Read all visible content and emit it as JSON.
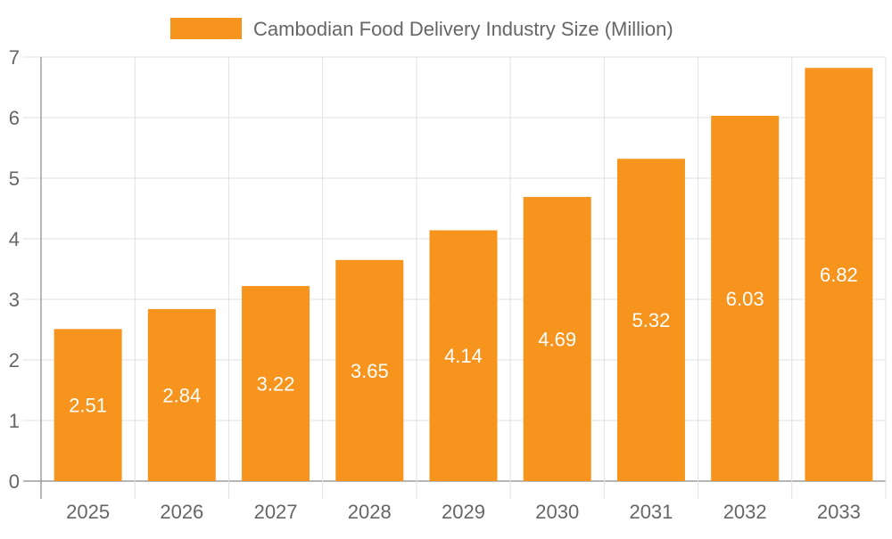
{
  "chart_data": {
    "type": "bar",
    "title": "",
    "xlabel": "",
    "ylabel": "",
    "categories": [
      "2025",
      "2026",
      "2027",
      "2028",
      "2029",
      "2030",
      "2031",
      "2032",
      "2033"
    ],
    "series": [
      {
        "name": "Cambodian Food Delivery Industry Size (Million)",
        "values": [
          2.51,
          2.84,
          3.22,
          3.65,
          4.14,
          4.69,
          5.32,
          6.03,
          6.82
        ]
      }
    ],
    "ylim": [
      0,
      7
    ],
    "yticks": [
      "0",
      "1",
      "2",
      "3",
      "4",
      "5",
      "6",
      "7"
    ],
    "grid": true,
    "legend_placement": "top",
    "data_labels": true,
    "colors": {
      "bar": "#f7941e",
      "grid": "#e0e0e0",
      "axis": "#9e9e9e",
      "text": "#666666",
      "label": "#ffffff"
    }
  }
}
